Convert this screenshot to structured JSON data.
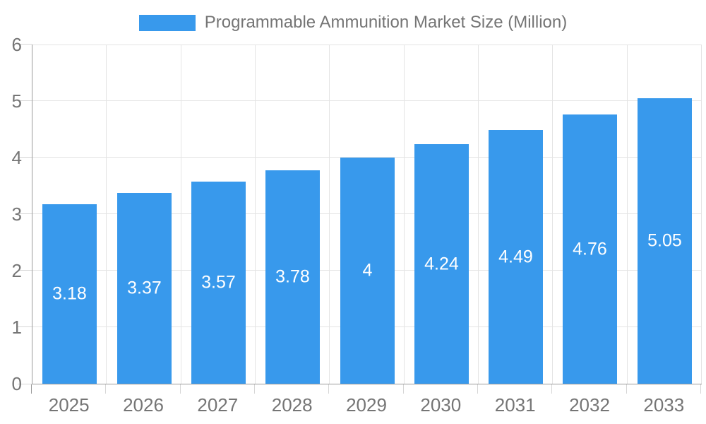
{
  "colors": {
    "bar": "#3899EC",
    "grid": "#E4E4E4",
    "axis": "#9A9A9A",
    "tick": "#D6D6D6",
    "axis_label_text": "#757575",
    "title_text": "#757575",
    "value_label_text": "#FFFFFF",
    "background": "#FFFFFF"
  },
  "legend": {
    "label": "Programmable Ammunition Market Size (Million)"
  },
  "chart_data": {
    "type": "bar",
    "title": "Programmable Ammunition Market Size (Million)",
    "series_name": "Programmable Ammunition Market Size (Million)",
    "categories": [
      "2025",
      "2026",
      "2027",
      "2028",
      "2029",
      "2030",
      "2031",
      "2032",
      "2033"
    ],
    "values": [
      3.18,
      3.37,
      3.57,
      3.78,
      4,
      4.24,
      4.49,
      4.76,
      5.05
    ],
    "value_labels": [
      "3.18",
      "3.37",
      "3.57",
      "3.78",
      "4",
      "4.24",
      "4.49",
      "4.76",
      "5.05"
    ],
    "xlabel": "",
    "ylabel": "",
    "ylim": [
      0,
      6
    ],
    "yticks": [
      0,
      1,
      2,
      3,
      4,
      5,
      6
    ],
    "grid": "on",
    "value_labels_position": "inside-center",
    "legend_position": "top-center"
  }
}
